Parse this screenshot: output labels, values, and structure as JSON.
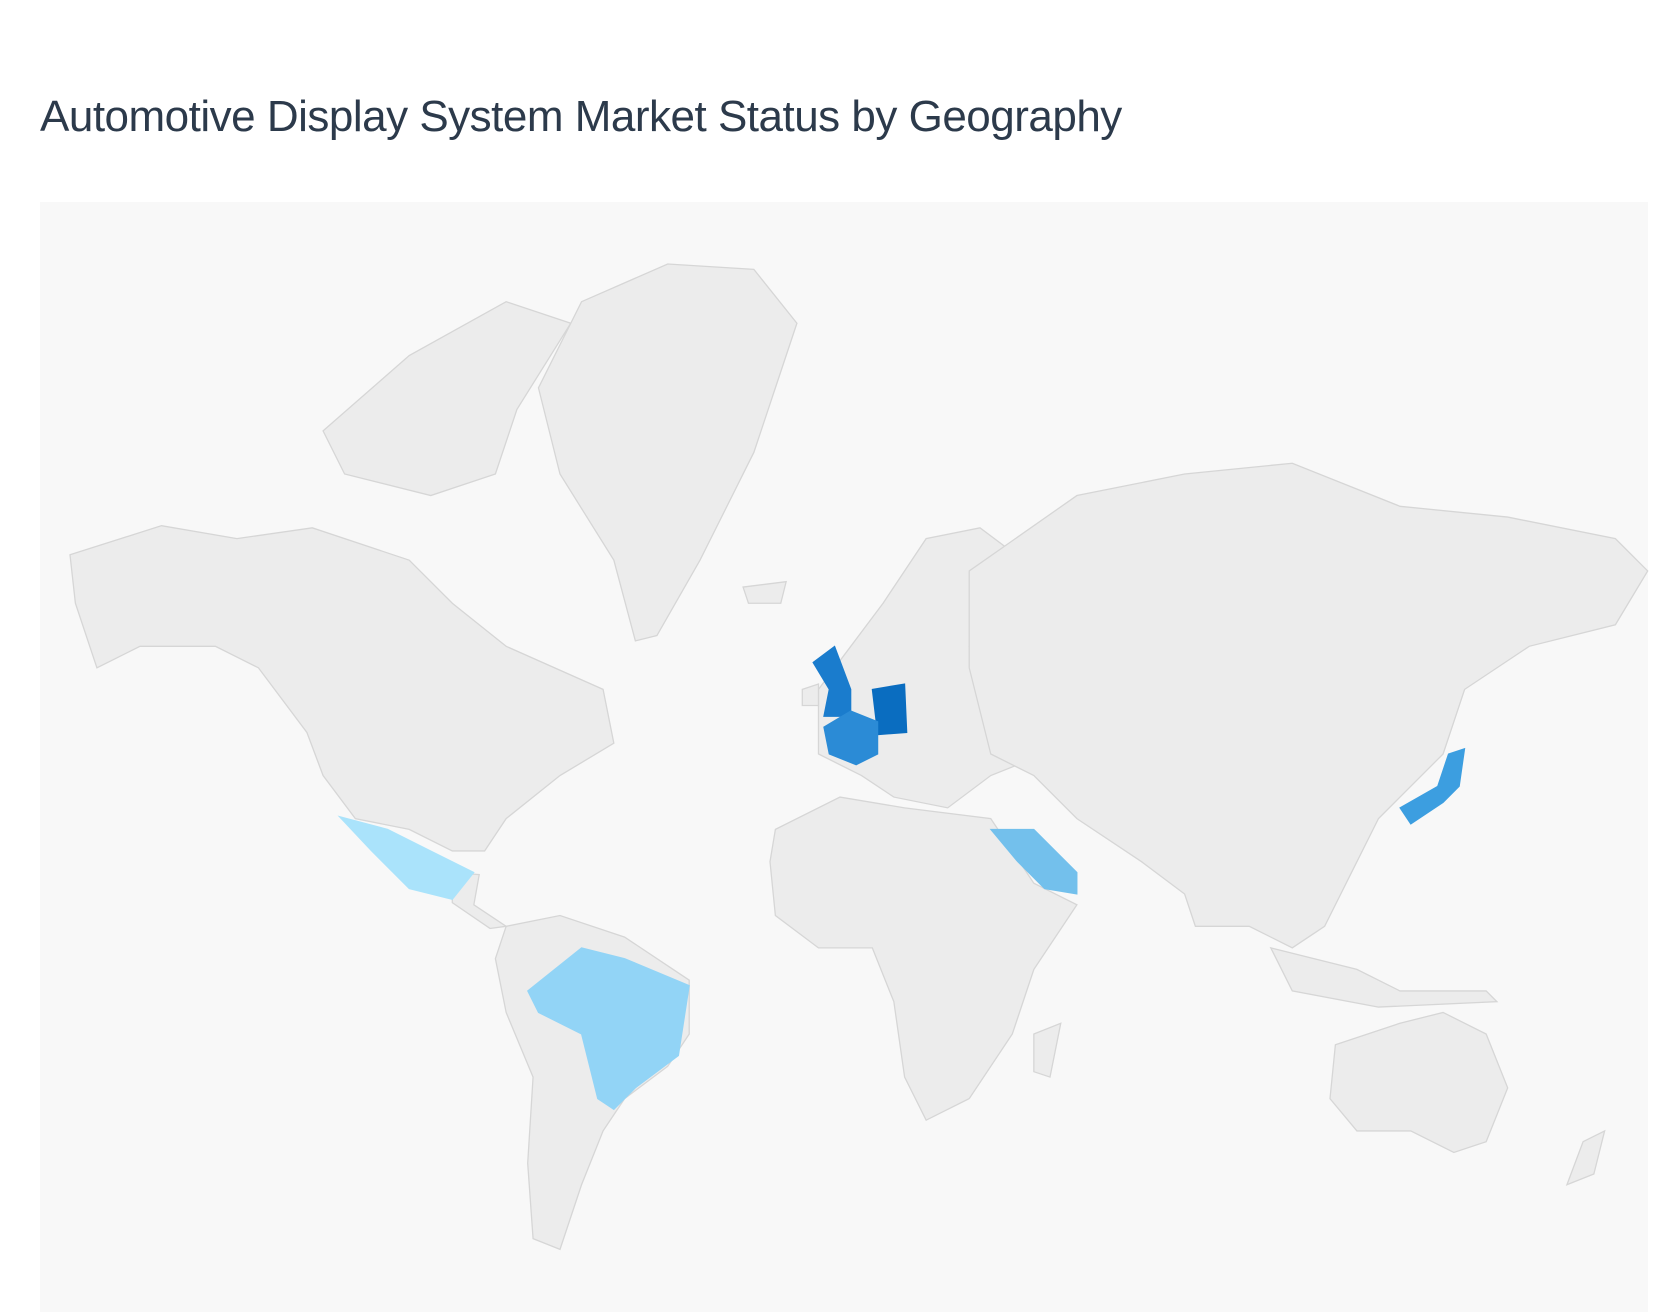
{
  "title": "Automotive Display System Market Status by Geography",
  "map": {
    "type": "choropleth",
    "projection": "mercator",
    "base_color": "#ececec",
    "border_color": "#d6d6d6",
    "background_color": "#f8f8f8",
    "highlighted_regions": [
      {
        "name": "Germany",
        "color": "#0a6dc0",
        "rank": 1
      },
      {
        "name": "United Kingdom",
        "color": "#1a7ccd",
        "rank": 2
      },
      {
        "name": "France",
        "color": "#2b8bd6",
        "rank": 3
      },
      {
        "name": "Japan",
        "color": "#3c9ee0",
        "rank": 4
      },
      {
        "name": "Saudi Arabia",
        "color": "#73c0ec",
        "rank": 5
      },
      {
        "name": "Brazil",
        "color": "#92d4f6",
        "rank": 6
      },
      {
        "name": "Mexico",
        "color": "#aae3fb",
        "rank": 7
      }
    ]
  }
}
